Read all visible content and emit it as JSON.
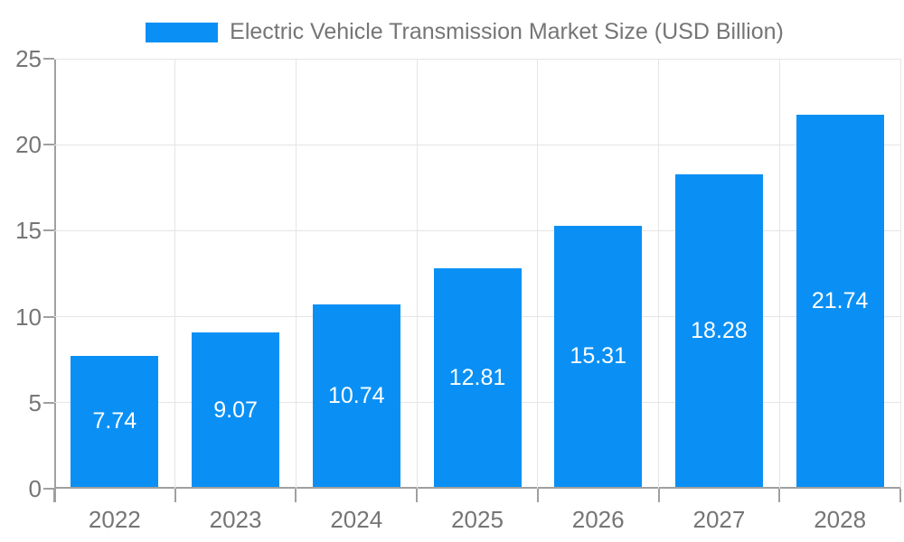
{
  "chart_data": {
    "type": "bar",
    "title": "Electric Vehicle Transmission Market Size (USD Billion)",
    "categories": [
      "2022",
      "2023",
      "2024",
      "2025",
      "2026",
      "2027",
      "2028"
    ],
    "values": [
      7.74,
      9.07,
      10.74,
      12.81,
      15.31,
      18.28,
      21.74
    ],
    "value_labels": [
      "7.74",
      "9.07",
      "10.74",
      "12.81",
      "15.31",
      "18.28",
      "21.74"
    ],
    "xlabel": "",
    "ylabel": "",
    "ylim": [
      0,
      25
    ],
    "yticks": [
      0,
      5,
      10,
      15,
      20,
      25
    ],
    "grid": true,
    "legend_position": "top",
    "colors": {
      "bar": "#0A90F5",
      "value_label": "#FFFFFF",
      "axis": "#A0A0A0",
      "grid": "#E5E5E5",
      "text": "#757575"
    }
  }
}
